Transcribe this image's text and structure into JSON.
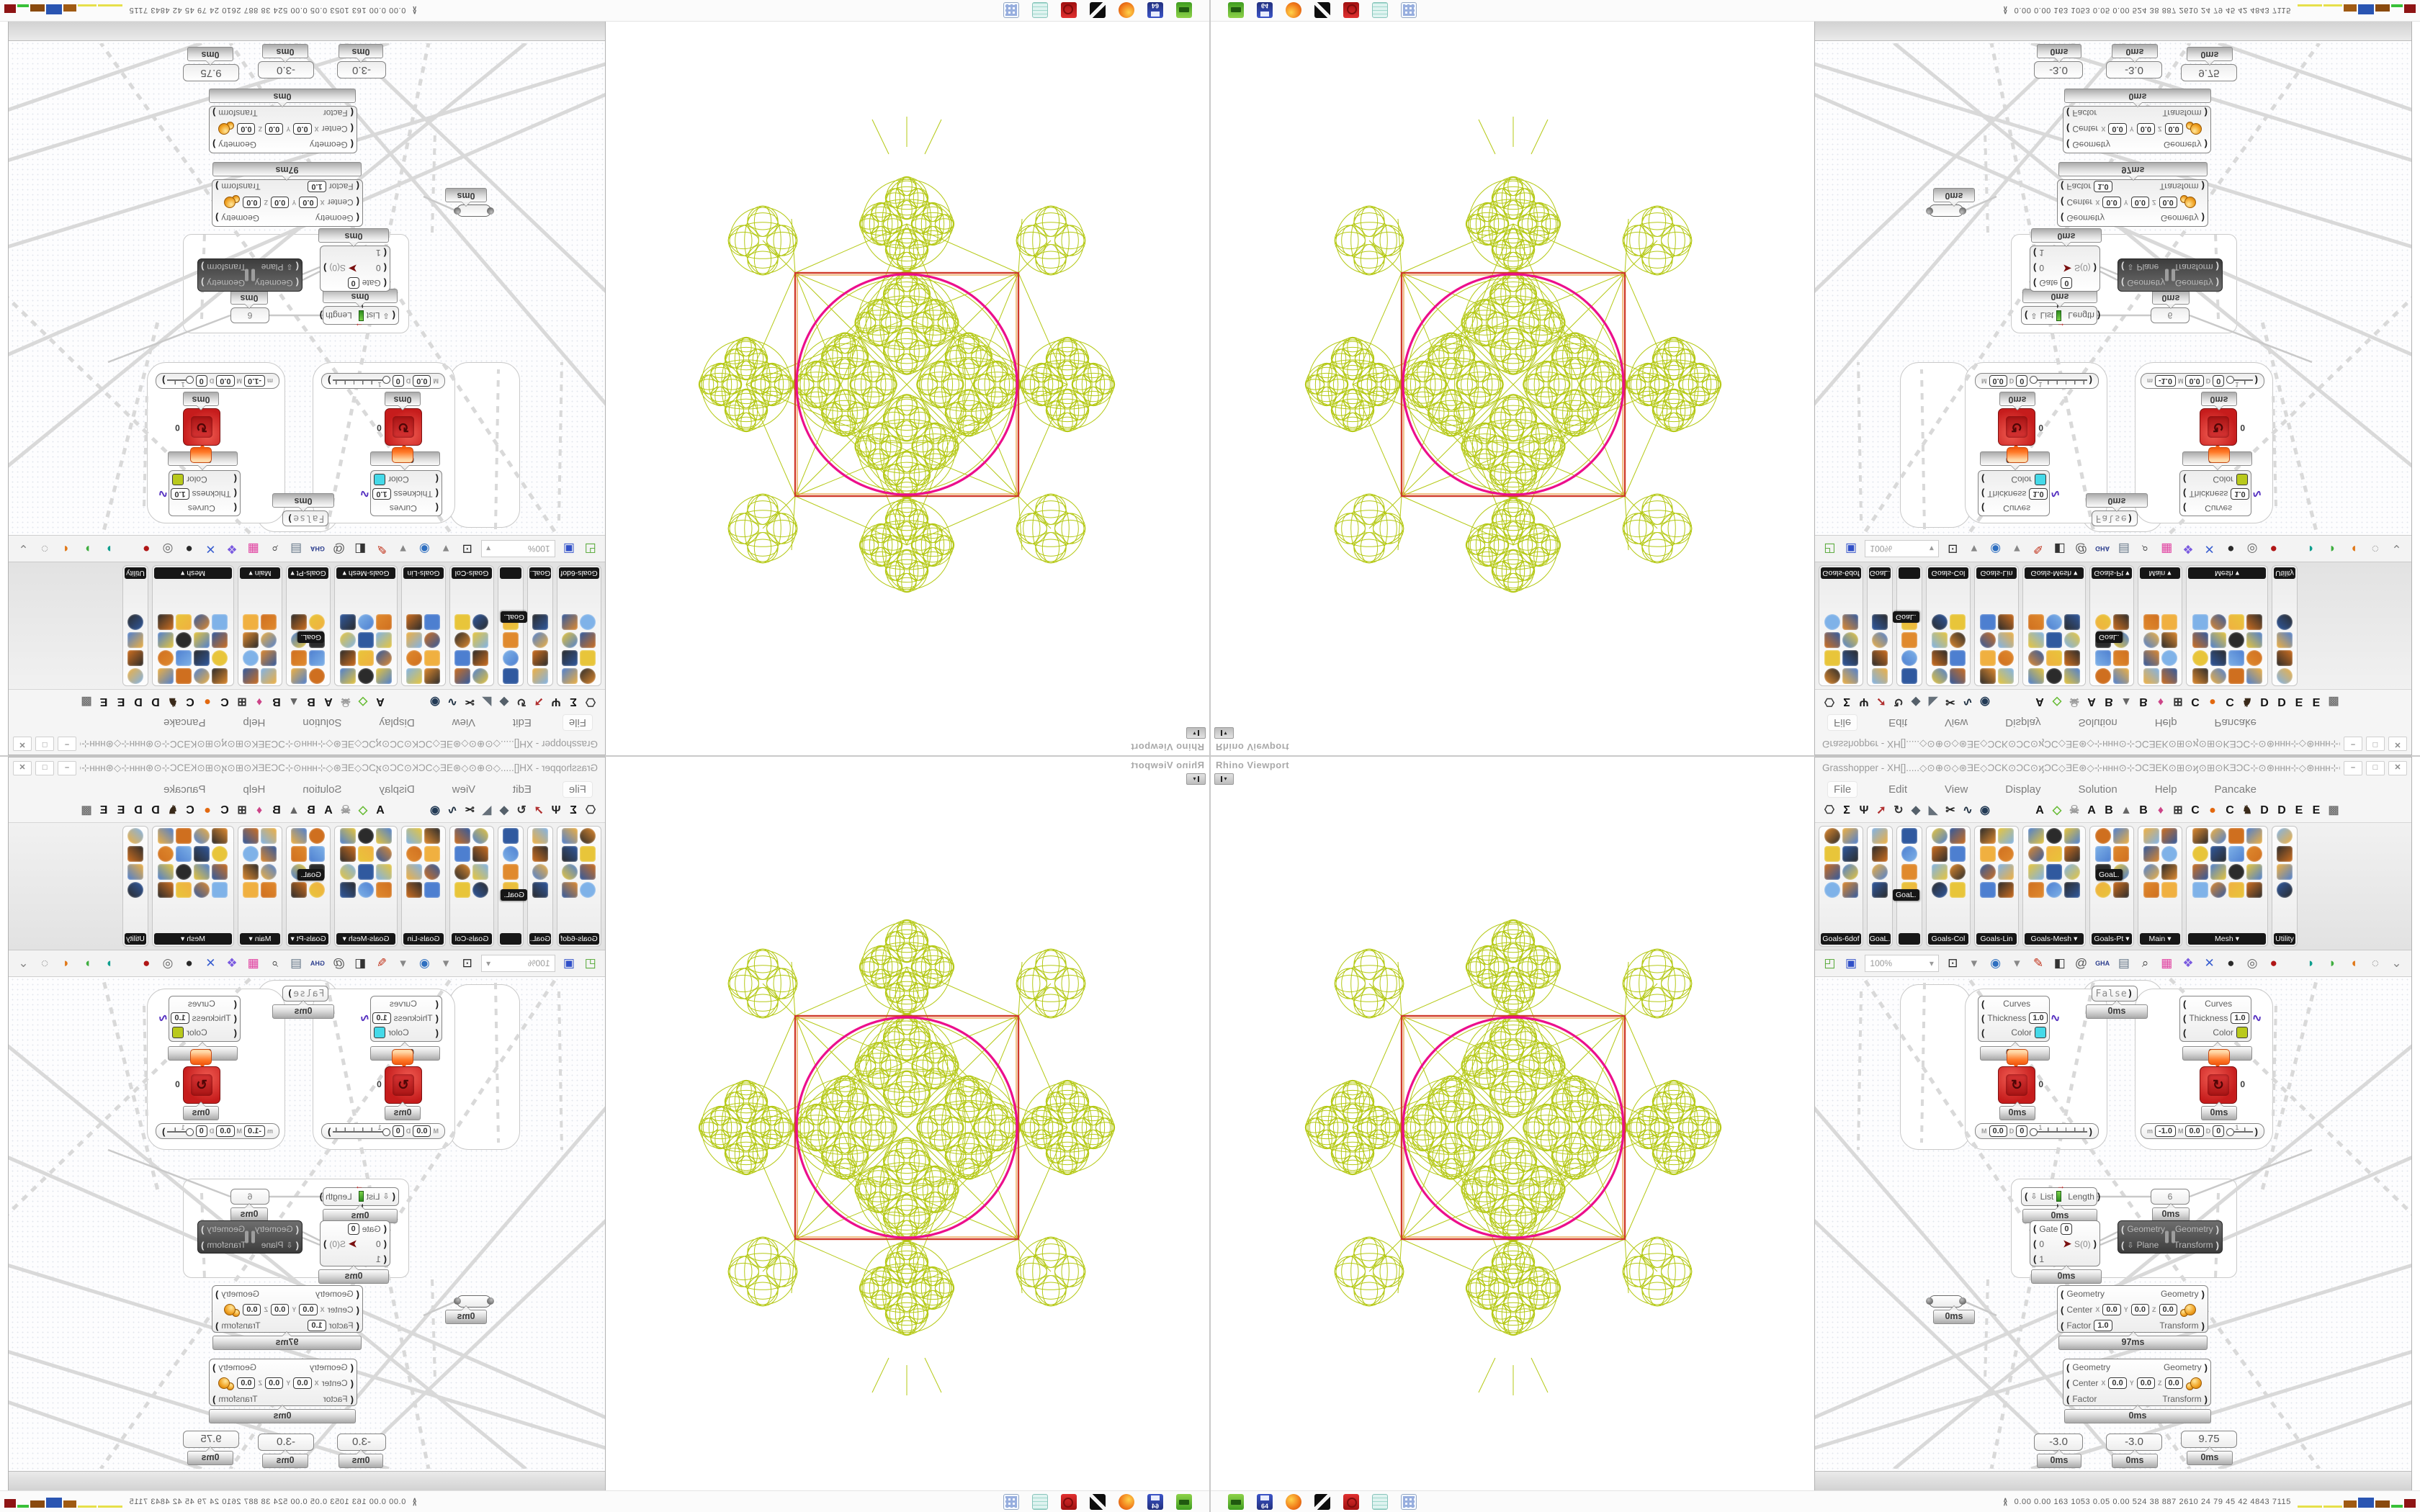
{
  "viewport": {
    "label": "Rhino Viewport",
    "collapse_glyph": "▾"
  },
  "gh": {
    "title": "Grasshopper - XH[].....◇⊙⊕⊙◇⊛ƎE◇ƆϹK⊙ƆϹ⊙ϗƆϹ◇ƎE⊛◇⊹ʜʜʜ⊙⊹ƆϹƎEK⊙⊞⊙ϗ⊙⊞⊙KƎƆϹ⊹⊙⊛ʜʜʜ⊹◇⊛ʜʜʜ⊹⊙ʜʜʜ⊙◇⊙⊹⊹⊙◇⊙ʜʜʜ⊙⊹ʜʜʜ⊙⊹ʜʜʜ⊛◇⊹ʜʜʜ⊙⊹ƆϹƎϗƆ⊞⊙ϗ⊙...",
    "window_buttons": [
      "–",
      "□",
      "✕"
    ],
    "menus": [
      "File",
      "Edit",
      "View",
      "Display",
      "Solution",
      "Help",
      "Pancake"
    ],
    "tabs": [
      {
        "glyph": "⎔",
        "name": "tab-params",
        "color": "#3a3a3a"
      },
      {
        "glyph": "Σ",
        "name": "tab-maths",
        "color": "#111111"
      },
      {
        "glyph": "Ψ",
        "name": "tab-sets",
        "color": "#222222"
      },
      {
        "glyph": "➚",
        "name": "tab-vector",
        "color": "#b03030"
      },
      {
        "glyph": "↻",
        "name": "tab-curve",
        "color": "#333333"
      },
      {
        "glyph": "◆",
        "name": "tab-surface",
        "color": "#55606a"
      },
      {
        "glyph": "◣",
        "name": "tab-mesh",
        "color": "#66707a"
      },
      {
        "glyph": "✂",
        "name": "tab-intersect",
        "color": "#222222"
      },
      {
        "glyph": "∿",
        "name": "tab-transform",
        "color": "#223344"
      },
      {
        "glyph": "◉",
        "name": "tab-display",
        "color": "#223a55"
      },
      {
        "glyph": "A",
        "name": "tab-plugin-a1",
        "color": "#151515",
        "gap": true
      },
      {
        "glyph": "◇",
        "name": "tab-plugin-leaf",
        "color": "#66bb33"
      },
      {
        "glyph": "☠",
        "name": "tab-plugin-skull",
        "color": "#999999"
      },
      {
        "glyph": "A",
        "name": "tab-plugin-a2",
        "color": "#151515"
      },
      {
        "glyph": "B",
        "name": "tab-plugin-b1",
        "color": "#151515"
      },
      {
        "glyph": "▲",
        "name": "tab-plugin-mountain",
        "color": "#666666"
      },
      {
        "glyph": "B",
        "name": "tab-plugin-b2",
        "color": "#151515"
      },
      {
        "glyph": "♦",
        "name": "tab-plugin-shield",
        "color": "#cc4488"
      },
      {
        "glyph": "⊞",
        "name": "tab-plugin-grid",
        "color": "#333333"
      },
      {
        "glyph": "C",
        "name": "tab-plugin-c1",
        "color": "#151515"
      },
      {
        "glyph": "●",
        "name": "tab-plugin-ellipse",
        "color": "#e2680f"
      },
      {
        "glyph": "C",
        "name": "tab-plugin-c2",
        "color": "#151515"
      },
      {
        "glyph": "♞",
        "name": "tab-plugin-bird",
        "color": "#3a2a1a"
      },
      {
        "glyph": "D",
        "name": "tab-plugin-d1",
        "color": "#151515"
      },
      {
        "glyph": "D",
        "name": "tab-plugin-d2",
        "color": "#151515"
      },
      {
        "glyph": "E",
        "name": "tab-plugin-e1",
        "color": "#151515"
      },
      {
        "glyph": "E",
        "name": "tab-plugin-e2",
        "color": "#151515"
      },
      {
        "glyph": "▩",
        "name": "tab-plugin-dashed",
        "color": "#777777"
      }
    ],
    "panels": [
      {
        "label": "Goals-6dof",
        "cols": 2,
        "arrow": false
      },
      {
        "label": "GoaL.",
        "cols": 1,
        "arrow": false
      },
      {
        "label": "",
        "cols": 1,
        "arrow": false
      },
      {
        "label": "Goals-Col",
        "cols": 2,
        "arrow": false
      },
      {
        "label": "Goals-Lin",
        "cols": 2,
        "arrow": false
      },
      {
        "label": "Goals-Mesh",
        "cols": 3,
        "arrow": true
      },
      {
        "label": "Goals-Pt",
        "cols": 2,
        "arrow": true
      },
      {
        "label": "Main",
        "cols": 2,
        "arrow": true
      },
      {
        "label": "Mesh",
        "cols": 4,
        "arrow": true
      },
      {
        "label": "Utility",
        "cols": 1,
        "arrow": false
      }
    ],
    "floating_labels": [
      "GoaL.",
      "GoaL."
    ],
    "toolbar": {
      "zoom_value": "100%",
      "dropdown_glyph": "▾",
      "items": [
        {
          "type": "icon",
          "name": "open-file-icon",
          "char": "◰",
          "color": "#4ea52e"
        },
        {
          "type": "icon",
          "name": "save-file-icon",
          "char": "▣",
          "color": "#3050c8"
        },
        {
          "type": "zoombox",
          "name": "zoom-level-combo"
        },
        {
          "type": "icon",
          "name": "zoom-extents-icon",
          "char": "⊡",
          "color": "#222222"
        },
        {
          "type": "icon",
          "name": "dropdown-arrow-icon",
          "char": "▾",
          "color": "#888888"
        },
        {
          "type": "icon",
          "name": "preview-eye-icon",
          "char": "◉",
          "color": "#2e6fc0"
        },
        {
          "type": "icon",
          "name": "dropdown-arrow-icon",
          "char": "▾",
          "color": "#888888"
        },
        {
          "type": "icon",
          "name": "sketch-pen-icon",
          "char": "✎",
          "color": "#c03018"
        },
        {
          "type": "icon",
          "name": "camera-icon",
          "char": "◧",
          "color": "#333333"
        },
        {
          "type": "icon",
          "name": "remote-panel-icon",
          "char": "@",
          "color": "#555555"
        },
        {
          "type": "icon",
          "name": "gha-package-icon",
          "char": "GHA",
          "color": "#2c3e8e",
          "small": true
        },
        {
          "type": "icon",
          "name": "document-icon",
          "char": "▤",
          "color": "#667788"
        },
        {
          "type": "icon",
          "name": "finder-icon",
          "char": "⌕",
          "color": "#444444"
        },
        {
          "type": "icon",
          "name": "mystery-gift-icon",
          "char": "▦",
          "color": "#e040a0"
        },
        {
          "type": "icon",
          "name": "lightbulb-icon",
          "char": "❖",
          "color": "#7a5ae0"
        },
        {
          "type": "icon",
          "name": "crossed-wires-icon",
          "char": "✕",
          "color": "#3a5fd0"
        },
        {
          "type": "icon",
          "name": "preview-dark-sphere-icon",
          "char": "●",
          "color": "#2a2a2a"
        },
        {
          "type": "icon",
          "name": "preview-wire-sphere-icon",
          "char": "◎",
          "color": "#666666"
        },
        {
          "type": "icon",
          "name": "preview-red-sphere-icon",
          "char": "●",
          "color": "#b01616"
        },
        {
          "type": "spacer"
        },
        {
          "type": "icon",
          "name": "pin-teal-icon",
          "char": "◗",
          "color": "#0f9e8e"
        },
        {
          "type": "icon",
          "name": "pin-green-icon",
          "char": "◗",
          "color": "#3fae3f"
        },
        {
          "type": "icon",
          "name": "pin-orange-icon",
          "char": "◖",
          "color": "#e07818"
        },
        {
          "type": "icon",
          "name": "selection-region-icon",
          "char": "◌",
          "color": "#888888"
        },
        {
          "type": "icon",
          "name": "toolbar-overflow-icon",
          "char": "⌄",
          "color": "#888888"
        }
      ]
    },
    "times": {
      "t0": "0ms",
      "t97": "97ms"
    },
    "nodes": {
      "toggle": {
        "label": "False"
      },
      "preview": {
        "curves": "Curves",
        "thickness": "Thickness",
        "thickness_value": "1.0",
        "color": "Color",
        "left_swatch": "#45d9e8",
        "right_swatch": "#b9c91c"
      },
      "error": {
        "output": "0"
      },
      "slider_left": {
        "p1": "M",
        "v1": "0.0",
        "p2": "D",
        "v2": "0",
        "handle": "1"
      },
      "slider_right": {
        "p0": "m",
        "v0": "-1.0",
        "p1": "M",
        "v1": "0.0",
        "p2": "D",
        "v2": "0",
        "handle": "1"
      },
      "list_length": {
        "input": "List",
        "output": "Length"
      },
      "value_panel": {
        "value": "6"
      },
      "gate": {
        "in0": "Gate",
        "gate_value": "0",
        "in1": "0",
        "in2": "1",
        "out": "S(0)"
      },
      "mirror": {
        "in0": "Geometry",
        "in1": "Plane",
        "out0": "Geometry",
        "out1": "Transform"
      },
      "scale_top": {
        "g_in": "Geometry",
        "g_out": "Geometry",
        "center": "Center",
        "x": "X",
        "y": "Y",
        "z": "Z",
        "cx": "0.0",
        "cy": "0.0",
        "cz": "0.0",
        "factor": "Factor",
        "factor_value": "1.0",
        "t_out": "Transform"
      },
      "scale_bottom": {
        "g_in": "Geometry",
        "g_out": "Geometry",
        "center": "Center",
        "x": "X",
        "y": "Y",
        "z": "Z",
        "cx": "0.0",
        "cy": "0.0",
        "cz": "0.0",
        "factor": "Factor",
        "t_out": "Transform"
      },
      "panel_a": "-3.0",
      "panel_b": "-3.0",
      "panel_c": "9.75"
    },
    "colors": {
      "wire_green": "#b5c916",
      "circle_magenta": "#ec0f8c",
      "square_red": "#cf3a2a",
      "square_orange": "#e2830f"
    }
  },
  "taskbar": {
    "apps": [
      {
        "name": "drive-green-icon"
      },
      {
        "name": "floppy-64-icon",
        "label": "64"
      },
      {
        "name": "firefox-icon"
      },
      {
        "name": "wolf-icon"
      },
      {
        "name": "red-badge-icon"
      },
      {
        "name": "notepad-icon"
      },
      {
        "name": "calculator-icon"
      }
    ],
    "stats": {
      "chevron": "∧",
      "values": "0.00 0.00 163 1053 0.05 0.00 524 38 887 2610 24 79 45 42 4843 7115",
      "bars": [
        {
          "color": "#e6e04a",
          "w": 34,
          "h": 3
        },
        {
          "color": "#e6e04a",
          "w": 26,
          "h": 3
        },
        {
          "color": "#a05a12",
          "w": 18,
          "h": 10
        },
        {
          "color": "#2a55b2",
          "w": 22,
          "h": 14
        },
        {
          "color": "#8a4a0e",
          "w": 20,
          "h": 10
        },
        {
          "color": "#38c038",
          "w": 16,
          "h": 4
        },
        {
          "color": "#8e1414",
          "w": 16,
          "h": 12
        }
      ]
    }
  }
}
